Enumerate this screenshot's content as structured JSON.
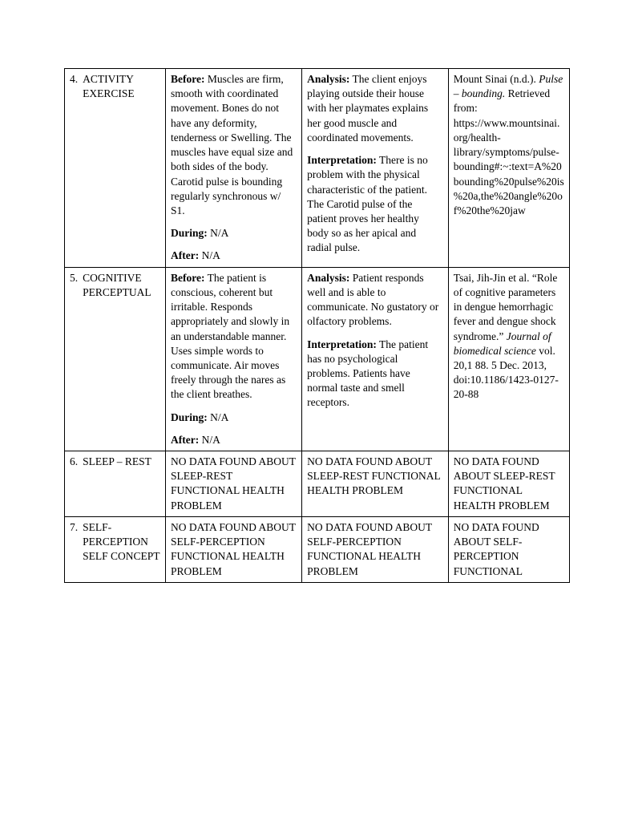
{
  "table": {
    "border_color": "#000000",
    "background": "#ffffff",
    "font_family": "Times New Roman",
    "base_font_size": 13.5,
    "col_widths_pct": [
      20,
      27,
      29,
      24
    ],
    "rows": [
      {
        "num": "4.",
        "label_line1": "ACTIVITY",
        "label_line2": "EXERCISE",
        "col2": {
          "before_label": "Before:",
          "before_text": " Muscles are firm, smooth with coordinated movement. Bones do not have any deformity, tenderness or Swelling. The muscles have equal size and both sides of the body. Carotid pulse is bounding regularly synchronous w/ S1.",
          "during_label": "During:",
          "during_text": " N/A",
          "after_label": "After:",
          "after_text": " N/A"
        },
        "col3": {
          "analysis_label": "Analysis:",
          "analysis_text": " The client enjoys playing outside their house with her playmates explains her good muscle and coordinated movements.",
          "interp_label": "Interpretation:",
          "interp_text": " There is no problem with the physical characteristic of the patient. The Carotid pulse of the patient proves her healthy body so as her apical and radial pulse."
        },
        "col4": {
          "pre": "Mount Sinai (n.d.). ",
          "italic": "Pulse – bounding.",
          "post": " Retrieved from: https://www.mountsinai.org/health-library/symptoms/pulse-bounding#:~:text=A%20bounding%20pulse%20is%20a,the%20angle%20of%20the%20jaw"
        }
      },
      {
        "num": "5.",
        "label_line1": "COGNITIVE",
        "label_line2": "PERCEPTUAL",
        "col2": {
          "before_label": "Before:",
          "before_text": " The patient is conscious, coherent but irritable. Responds appropriately and slowly in an understandable manner. Uses simple words to communicate.  Air moves freely through the nares as the client breathes.",
          "during_label": "During:",
          "during_text": " N/A",
          "after_label": "After:",
          "after_text": " N/A"
        },
        "col3": {
          "analysis_label": "Analysis:",
          "analysis_text": " Patient responds well and is able to communicate. No gustatory or olfactory problems.",
          "interp_label": "Interpretation:",
          "interp_text": " The patient has no psychological problems. Patients have normal taste and smell receptors."
        },
        "col4": {
          "pre": "Tsai, Jih-Jin et al. “Role of cognitive parameters in dengue hemorrhagic fever and dengue shock syndrome.” ",
          "italic": "Journal of biomedical science",
          "post": " vol. 20,1 88. 5 Dec. 2013, doi:10.1186/1423-0127-20-88"
        }
      },
      {
        "num": "6.",
        "label_line1": "SLEEP – REST",
        "label_line2": "",
        "col2_plain": "NO DATA FOUND ABOUT SLEEP-REST FUNCTIONAL HEALTH PROBLEM",
        "col3_plain": "NO DATA FOUND ABOUT SLEEP-REST FUNCTIONAL HEALTH PROBLEM",
        "col4_plain": "NO DATA FOUND ABOUT SLEEP-REST FUNCTIONAL HEALTH PROBLEM"
      },
      {
        "num": "7.",
        "label_line1": "SELF-PERCEPTION",
        "label_line2": "SELF CONCEPT",
        "col2_plain": "NO DATA FOUND ABOUT SELF-PERCEPTION FUNCTIONAL HEALTH PROBLEM",
        "col3_plain": "NO DATA FOUND ABOUT SELF-PERCEPTION FUNCTIONAL HEALTH PROBLEM",
        "col4_plain": "NO DATA FOUND ABOUT SELF-PERCEPTION FUNCTIONAL"
      }
    ]
  }
}
